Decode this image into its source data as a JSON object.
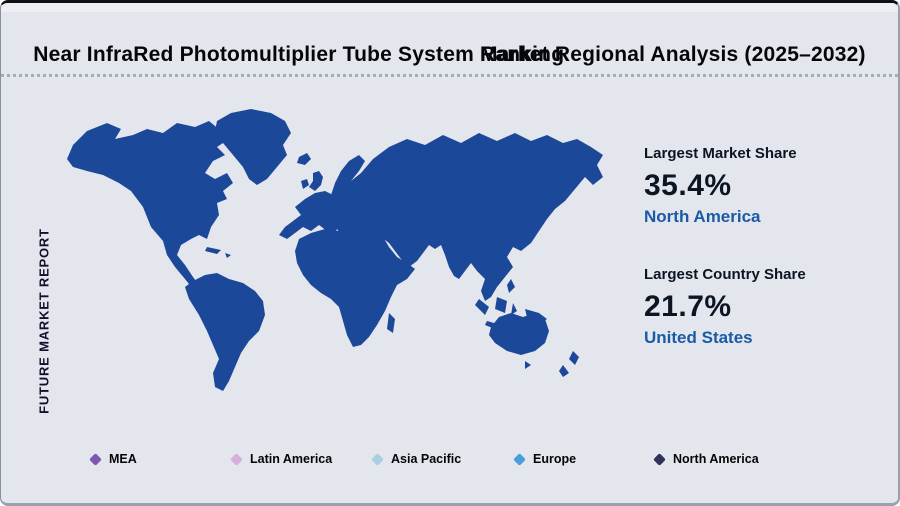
{
  "title": {
    "prefix": "Near InfraRed Photomultiplier Tube System",
    "overlap_bottom": "Market",
    "overlap_top": "Ranking",
    "suffix": "Regional Analysis (2025–2032)"
  },
  "sidebar_watermark": "FUTURE MARKET REPORT",
  "stats": {
    "market_share": {
      "label": "Largest Market Share",
      "value": "35.4%",
      "region": "North America"
    },
    "country_share": {
      "label": "Largest Country Share",
      "value": "21.7%",
      "region": "United States"
    }
  },
  "legend": {
    "items": [
      {
        "label": "MEA",
        "color": "#7e57b5"
      },
      {
        "label": "Latin America",
        "color": "#d7aede"
      },
      {
        "label": "Asia Pacific",
        "color": "#a9cfe2"
      },
      {
        "label": "Europe",
        "color": "#4a9edb"
      },
      {
        "label": "North America",
        "color": "#31315e"
      }
    ]
  },
  "colors": {
    "map_fill": "#1c4899",
    "background": "#e4e6ee",
    "region_text_blue": "#1b5aa5"
  },
  "chart_data": {
    "type": "heatmap",
    "variant": "choropleth-world-map",
    "title": "Near InfraRed Photomultiplier Tube System Market Ranking Regional Analysis (2025–2032)",
    "regions": [
      "MEA",
      "Latin America",
      "Asia Pacific",
      "Europe",
      "North America"
    ],
    "annotations": [
      {
        "label": "Largest Market Share",
        "value": 35.4,
        "unit": "%",
        "region": "North America"
      },
      {
        "label": "Largest Country Share",
        "value": 21.7,
        "unit": "%",
        "region": "United States"
      }
    ],
    "legend_position": "bottom",
    "map_single_fill": true
  }
}
